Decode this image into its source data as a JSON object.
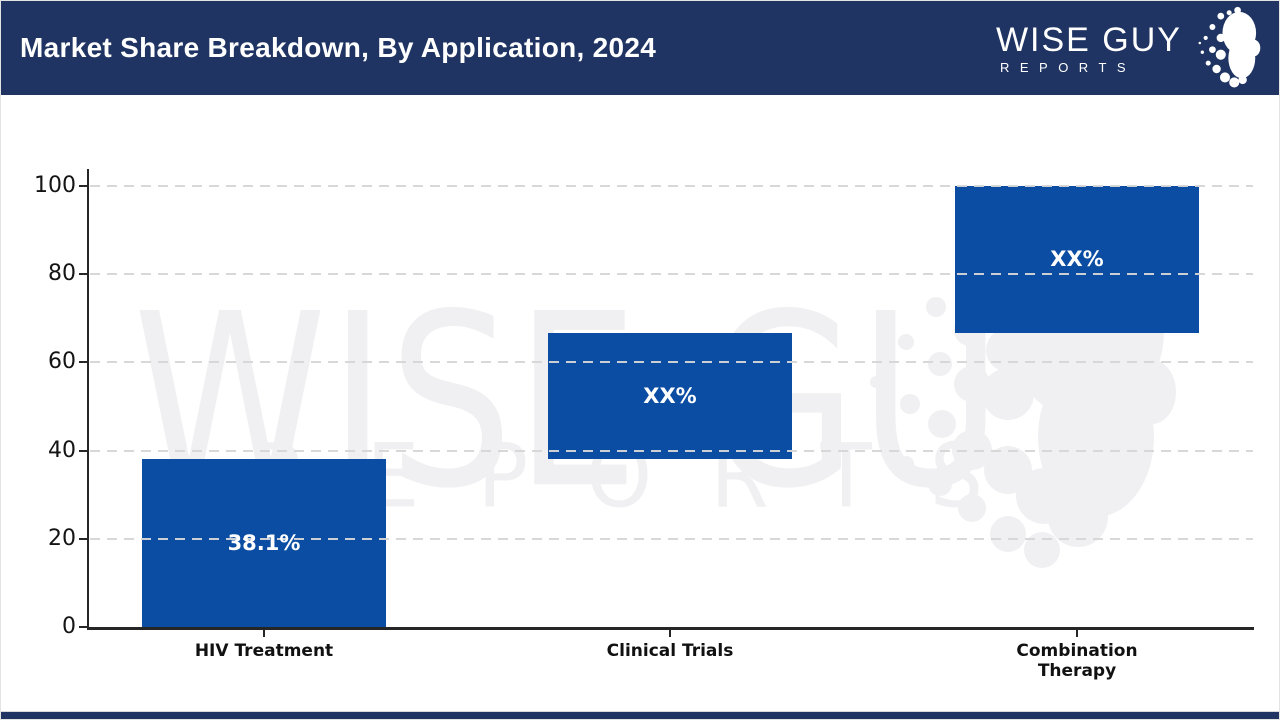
{
  "header": {
    "title": "Market Share Breakdown, By Application, 2024",
    "bg_color": "#1f3462",
    "brand_line1": "WISE GUY",
    "brand_line2": "REPORTS"
  },
  "watermark": {
    "line1": "WISE GUY",
    "line2": "REPORTS",
    "color": "#f0f0f2"
  },
  "chart_data": {
    "type": "bar",
    "subtype": "waterfall",
    "title": "Market Share Breakdown, By Application, 2024",
    "categories": [
      "HIV Treatment",
      "Clinical Trials",
      "Combination Therapy"
    ],
    "segments": [
      {
        "category": "HIV Treatment",
        "start": 0,
        "end": 38.1,
        "label": "38.1%"
      },
      {
        "category": "Clinical Trials",
        "start": 38.1,
        "end": 66.7,
        "label": "XX%"
      },
      {
        "category": "Combination Therapy",
        "start": 66.7,
        "end": 100,
        "label": "XX%"
      }
    ],
    "ylim": [
      0,
      100
    ],
    "yticks": [
      0,
      20,
      40,
      60,
      80,
      100
    ],
    "xlabel": "",
    "ylabel": "",
    "grid": "horizontal-dashed-over-bars",
    "legend": "none",
    "bar_color": "#0b4da3",
    "bar_label_color": "#ffffff"
  }
}
